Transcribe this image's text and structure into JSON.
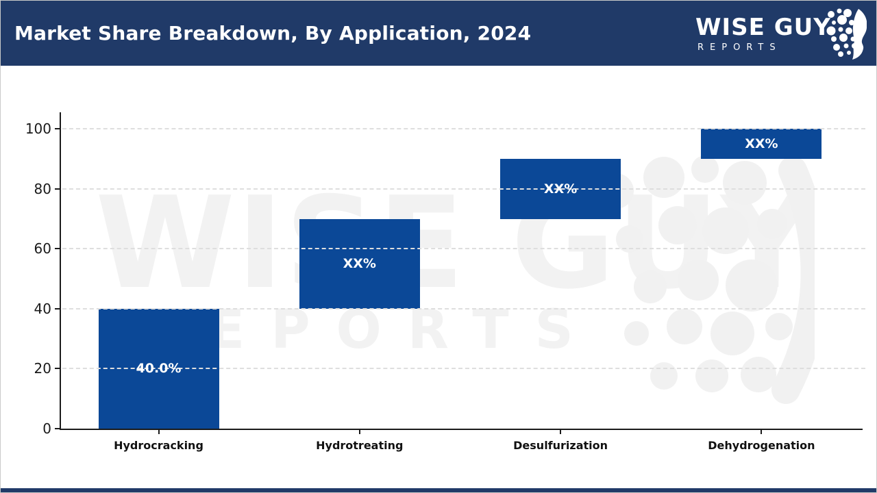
{
  "page": {
    "accent_navy": "#203a68",
    "bar_blue": "#0b4897",
    "border_gray": "#c9c9c9"
  },
  "header": {
    "title": "Market Share Breakdown, By Application, 2024",
    "logo_line1": "WISE GUY",
    "logo_line2": "REPORTS"
  },
  "watermark": {
    "line1": "WISE GUY",
    "line2": "REPORTS"
  },
  "chart_data": {
    "type": "bar",
    "variant": "waterfall-segments",
    "title": "Market Share Breakdown, By Application, 2024",
    "categories": [
      "Hydrocracking",
      "Hydrotreating",
      "Desulfurization",
      "Dehydrogenation"
    ],
    "bars": [
      {
        "category": "Hydrocracking",
        "start": 0,
        "end": 40,
        "label": "40.0%"
      },
      {
        "category": "Hydrotreating",
        "start": 40,
        "end": 70,
        "label": "XX%"
      },
      {
        "category": "Desulfurization",
        "start": 70,
        "end": 90,
        "label": "XX%"
      },
      {
        "category": "Dehydrogenation",
        "start": 90,
        "end": 100,
        "label": "XX%"
      }
    ],
    "yticks": [
      0,
      20,
      40,
      60,
      80,
      100
    ],
    "ylim": [
      0,
      105
    ],
    "grid": "horizontal-dashed",
    "legend": "none",
    "bar_color": "#0b4897",
    "bar_label_color": "#ffffff"
  }
}
